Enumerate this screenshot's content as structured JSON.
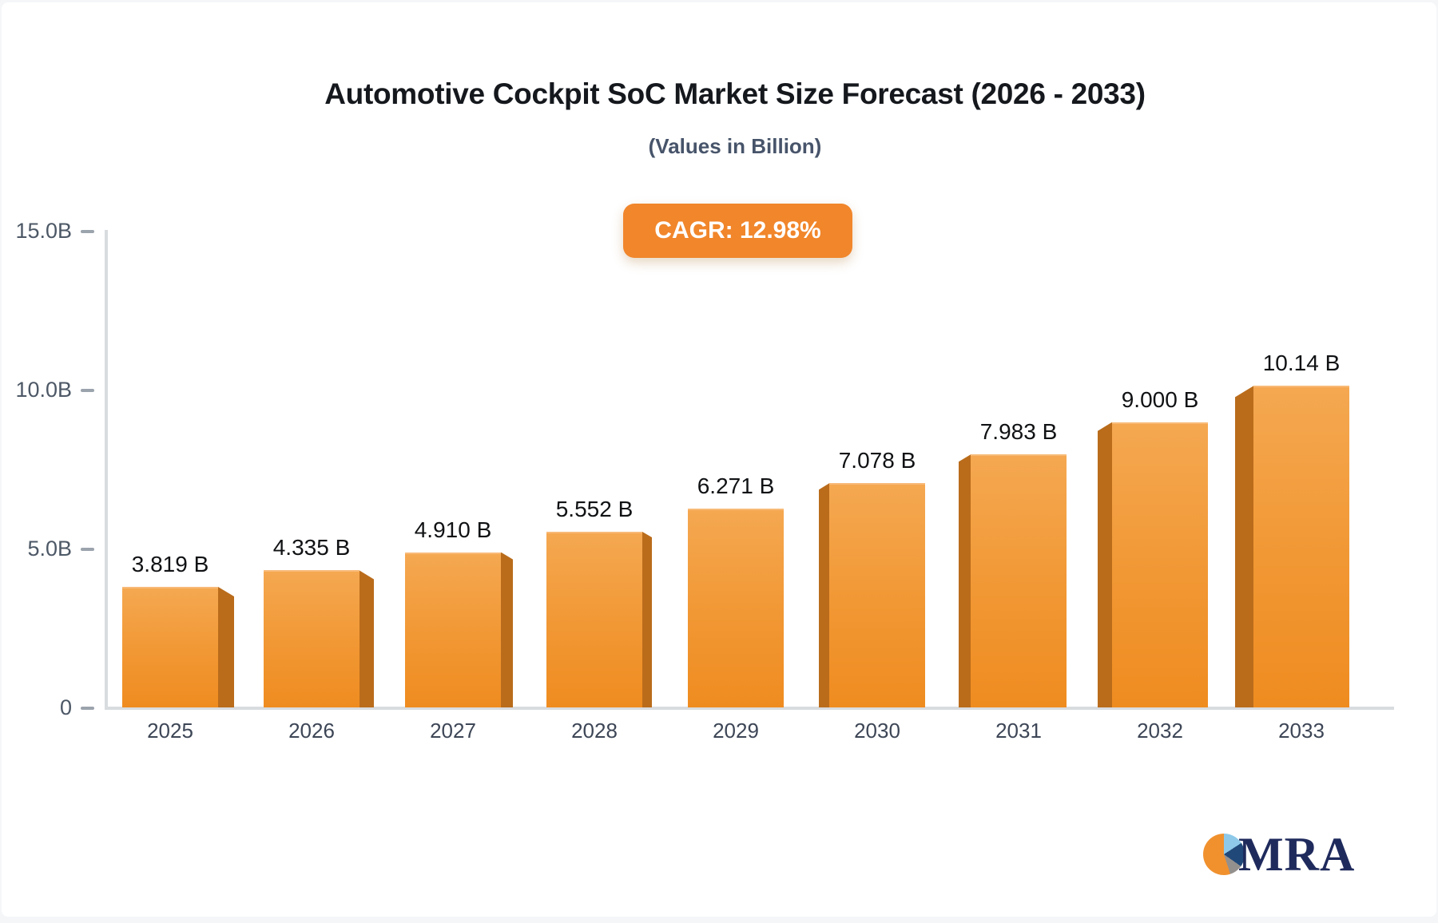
{
  "header": {
    "title": "Automotive Cockpit SoC Market Size Forecast (2026 - 2033)",
    "subtitle": "(Values in Billion)",
    "cagr_badge": "CAGR: 12.98%"
  },
  "chart_data": {
    "type": "bar",
    "title": "Automotive Cockpit SoC Market Size Forecast (2026 - 2033)",
    "subtitle": "(Values in Billion)",
    "cagr": "12.98%",
    "categories": [
      "2025",
      "2026",
      "2027",
      "2028",
      "2029",
      "2030",
      "2031",
      "2032",
      "2033"
    ],
    "values": [
      3.819,
      4.335,
      4.91,
      5.552,
      6.271,
      7.078,
      7.983,
      9.0,
      10.14
    ],
    "value_labels": [
      "3.819 B",
      "4.335 B",
      "4.910 B",
      "5.552 B",
      "6.271 B",
      "7.078 B",
      "7.983 B",
      "9.000 B",
      "10.14 B"
    ],
    "y_ticks": [
      {
        "label": "0",
        "value": 0
      },
      {
        "label": "5.0B",
        "value": 5
      },
      {
        "label": "10.0B",
        "value": 10
      },
      {
        "label": "15.0B",
        "value": 15
      }
    ],
    "ylim": [
      0,
      15
    ],
    "xlabel": "",
    "ylabel": "",
    "grid": false,
    "legend": "none",
    "style": {
      "bar_face_top": "#F5A851",
      "bar_face_bottom": "#EF8C20",
      "bar_side": "#BA6C1B",
      "badge_color": "#F1862B",
      "axis_color": "#d9dcdf",
      "tick_color": "#9ba3ad"
    }
  },
  "logo": {
    "text": "MRA",
    "pie_colors": [
      "#F0912E",
      "#8EC9E9",
      "#20497A",
      "#94908E"
    ],
    "text_color": "#1f2a5c"
  }
}
